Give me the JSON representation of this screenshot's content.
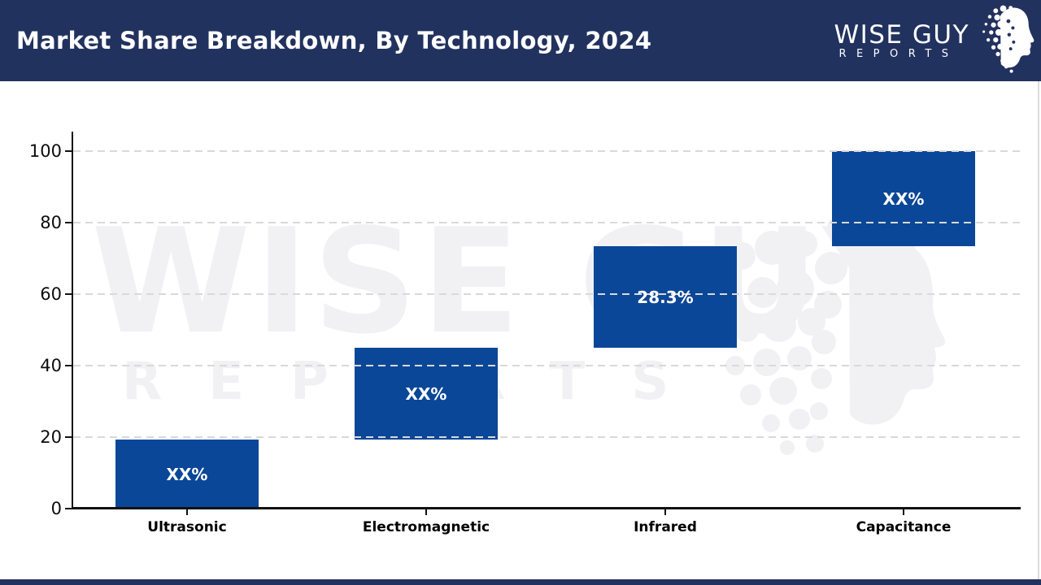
{
  "header": {
    "title": "Market Share Breakdown, By Technology, 2024",
    "logo": {
      "brand": "WISE GUY",
      "sub": "REPORTS"
    }
  },
  "watermark": {
    "brand": "WISE GUY",
    "sub": "REPORTS"
  },
  "chart_data": {
    "type": "bar",
    "subtype": "floating-waterfall-bars",
    "title": "Market Share Breakdown, By Technology, 2024",
    "categories": [
      "Ultrasonic",
      "Electromagnetic",
      "Infrared",
      "Capacitance"
    ],
    "segments": [
      {
        "category": "Ultrasonic",
        "start": 0,
        "end": 19.3,
        "label": "XX%"
      },
      {
        "category": "Electromagnetic",
        "start": 19.3,
        "end": 45.0,
        "label": "XX%"
      },
      {
        "category": "Infrared",
        "start": 45.0,
        "end": 73.3,
        "label": "28.3%"
      },
      {
        "category": "Capacitance",
        "start": 73.3,
        "end": 100.0,
        "label": "XX%"
      }
    ],
    "yticks": [
      0,
      20,
      40,
      60,
      80,
      100
    ],
    "ylim": [
      0,
      105
    ],
    "xlabel": "",
    "ylabel": "",
    "legend": "none",
    "grid": "horizontal-dashed",
    "colors": {
      "bar": "#0b4798",
      "header_bg": "#22325f",
      "footer_bg": "#22325f",
      "grid_line": "#d9d9d9",
      "axis": "#111111",
      "title_text": "#ffffff",
      "bar_label_text": "#ffffff",
      "watermark": "#f1f1f4"
    }
  }
}
